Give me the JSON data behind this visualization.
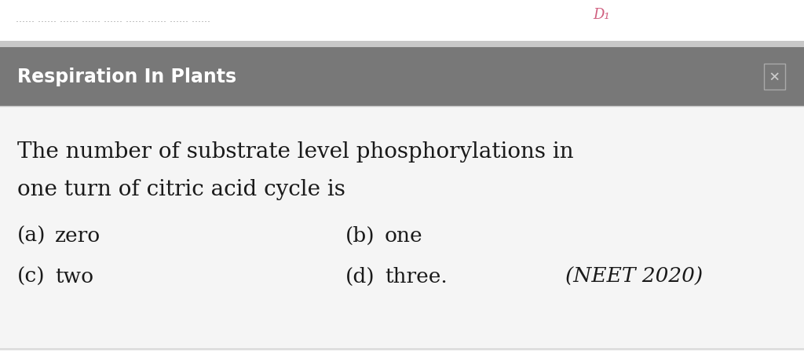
{
  "title": "Respiration In Plants",
  "title_bg_color": "#787878",
  "title_text_color": "#ffffff",
  "body_bg_color": "#f5f5f5",
  "outer_bg_color": "#c8c8c8",
  "top_card_bg": "#ffffff",
  "question_text_line1": "The number of substrate level phosphorylations in",
  "question_text_line2": "one turn of citric acid cycle is",
  "option_a_label": "(a)",
  "option_a_text": "zero",
  "option_b_label": "(b)",
  "option_b_text": "one",
  "option_c_label": "(c)",
  "option_c_text": "two",
  "option_d_label": "(d)",
  "option_d_text": "three.",
  "neet_tag": "(NEET 2020)",
  "main_text_color": "#1a1a1a",
  "neet_tag_color": "#1a1a1a",
  "top_faint_text": "...... ...... ...... ...... ...... ...... ...... ...... ......",
  "top_faint_color": "#999999",
  "pink_mark": "D₁",
  "pink_color": "#d06080",
  "figsize": [
    10.24,
    4.47
  ],
  "dpi": 100
}
